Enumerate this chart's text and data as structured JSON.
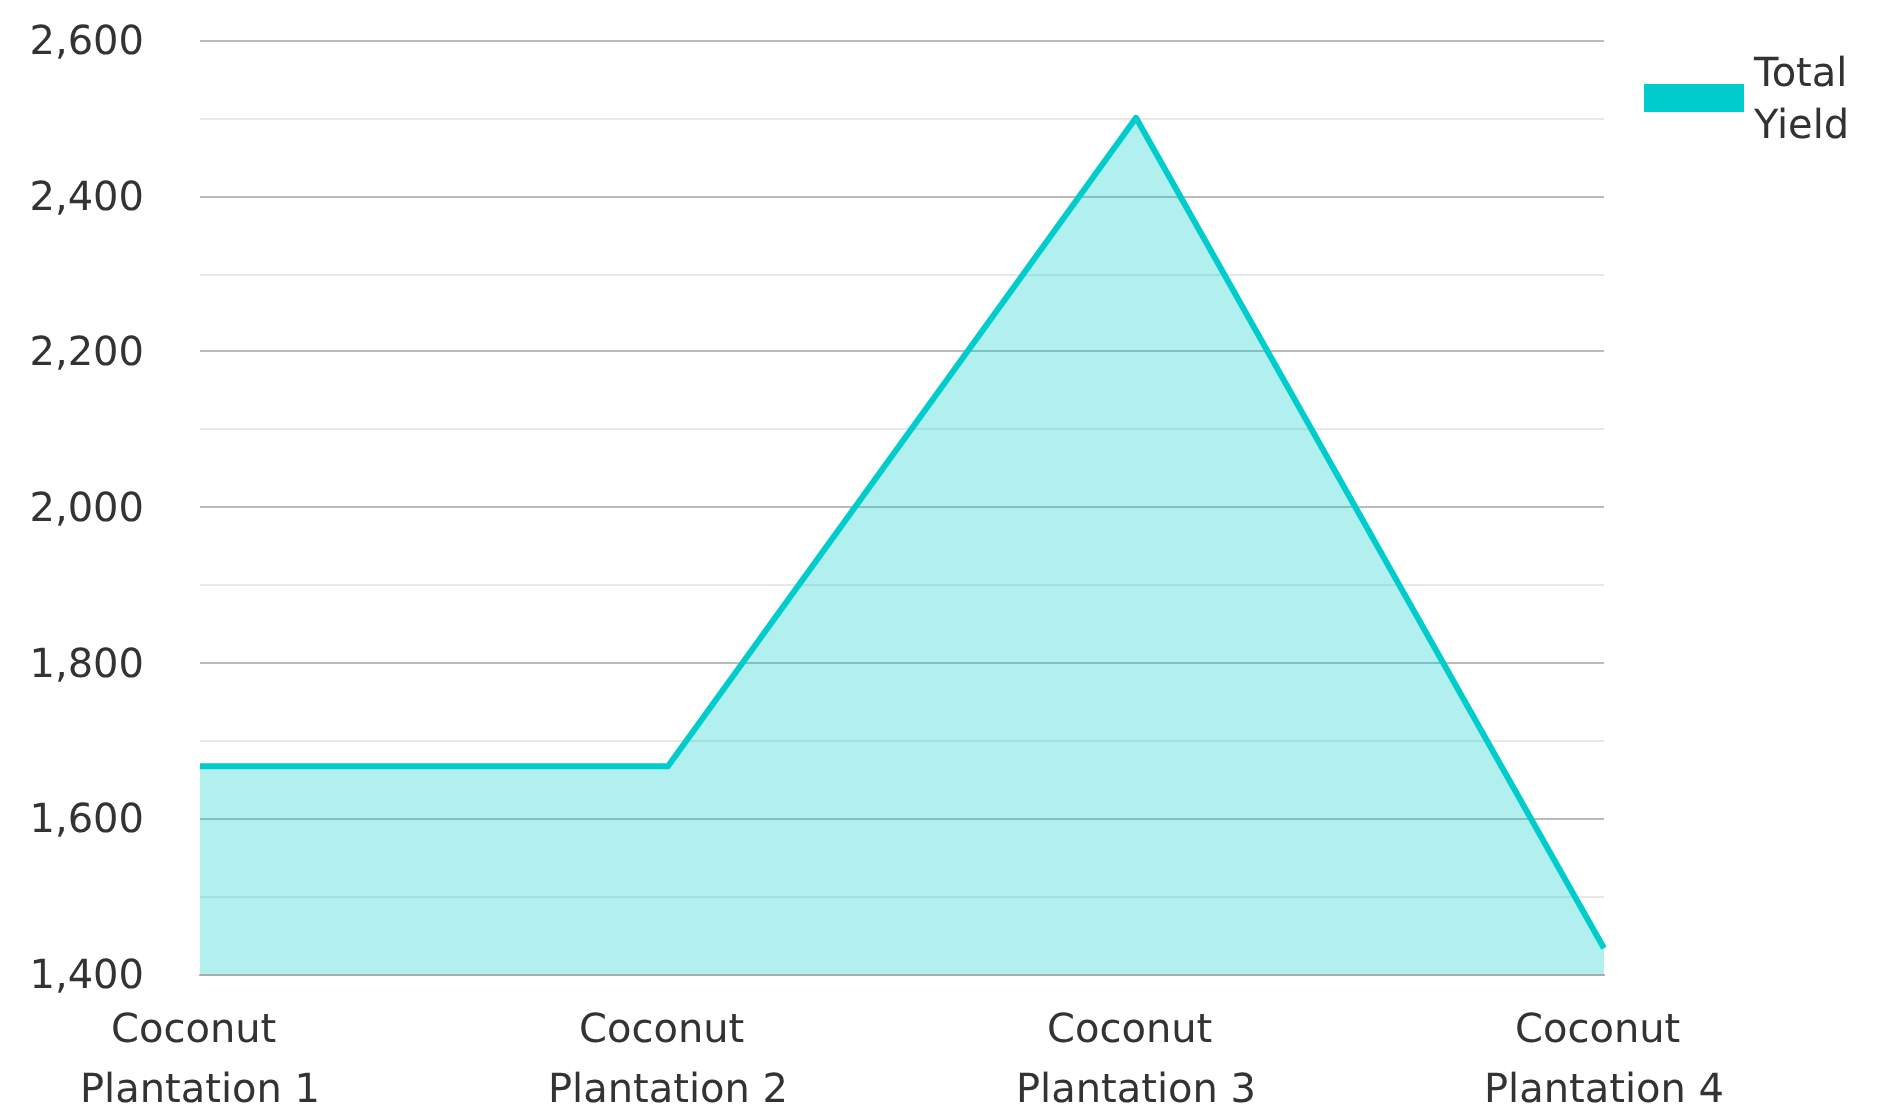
{
  "chart_data": {
    "type": "area",
    "categories": [
      "Coconut Plantation 1",
      "Coconut Plantation 2",
      "Coconut Plantation 3",
      "Coconut Plantation 4"
    ],
    "series": [
      {
        "name": "Total Yield",
        "color": "#00cccc",
        "values": [
          1667,
          1667,
          2500,
          1433
        ]
      }
    ],
    "ylim": [
      1400,
      2600
    ],
    "yticks": [
      {
        "value": 1400,
        "label": "1,400"
      },
      {
        "value": 1600,
        "label": "1,600"
      },
      {
        "value": 1800,
        "label": "1,800"
      },
      {
        "value": 2000,
        "label": "2,000"
      },
      {
        "value": 2200,
        "label": "2,200"
      },
      {
        "value": 2400,
        "label": "2,400"
      },
      {
        "value": 2600,
        "label": "2,600"
      }
    ],
    "grid": "y",
    "legend": "top right",
    "marker": "none"
  }
}
